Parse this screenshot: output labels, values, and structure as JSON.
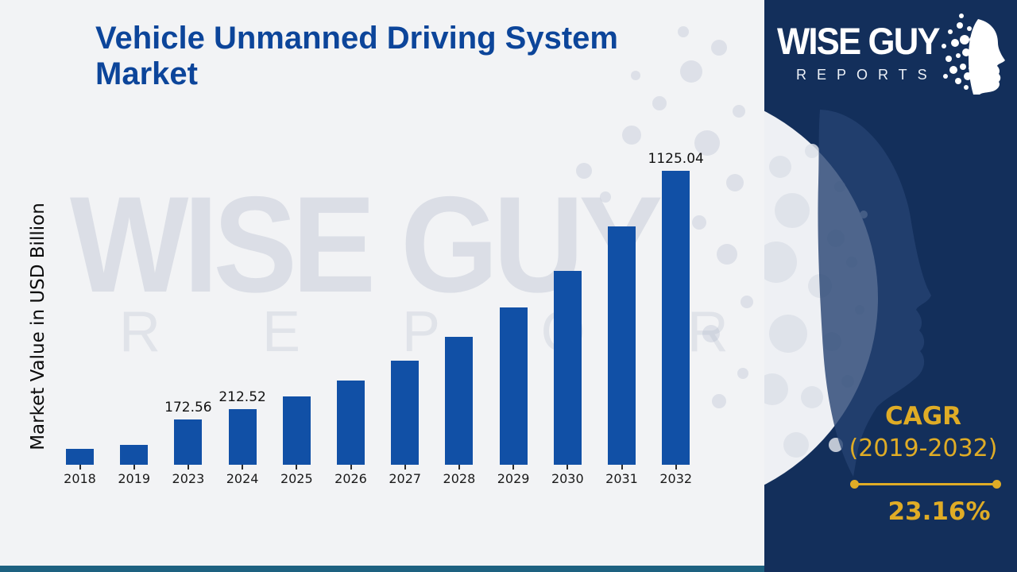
{
  "title": "Vehicle Unmanned Driving System Market",
  "watermark": {
    "line1": "WISE GUY",
    "line2": "R E P O R T S"
  },
  "logo": {
    "line1": "WISE GUY",
    "line2": "REPORTS"
  },
  "cagr": {
    "heading": "CAGR",
    "range": "(2019-2032)",
    "value": "23.16%"
  },
  "chart_data": {
    "type": "bar",
    "title": "Vehicle Unmanned Driving System Market",
    "ylabel": "Market Value in USD Billion",
    "xlabel": "",
    "categories": [
      "2018",
      "2019",
      "2023",
      "2024",
      "2025",
      "2026",
      "2027",
      "2028",
      "2029",
      "2030",
      "2031",
      "2032"
    ],
    "values": [
      60.9,
      75.0,
      172.56,
      212.52,
      261.74,
      322.36,
      397.02,
      488.97,
      602.22,
      741.69,
      913.46,
      1125.04
    ],
    "bar_labels": {
      "2023": "172.56",
      "2024": "212.52",
      "2032": "1125.04"
    },
    "ylim": [
      0,
      1180
    ],
    "grid": false,
    "legend": "none",
    "bar_color": "#1150a6",
    "cagr_percent": 23.16,
    "cagr_period": "2019-2032"
  },
  "colors": {
    "background": "#f2f3f5",
    "bar": "#1150a6",
    "title_blue": "#0c459a",
    "panel_navy": "#132f5b",
    "accent_gold": "#dfac26",
    "teal_strip": "#1d6180",
    "axis_text": "#1a1a1a"
  }
}
